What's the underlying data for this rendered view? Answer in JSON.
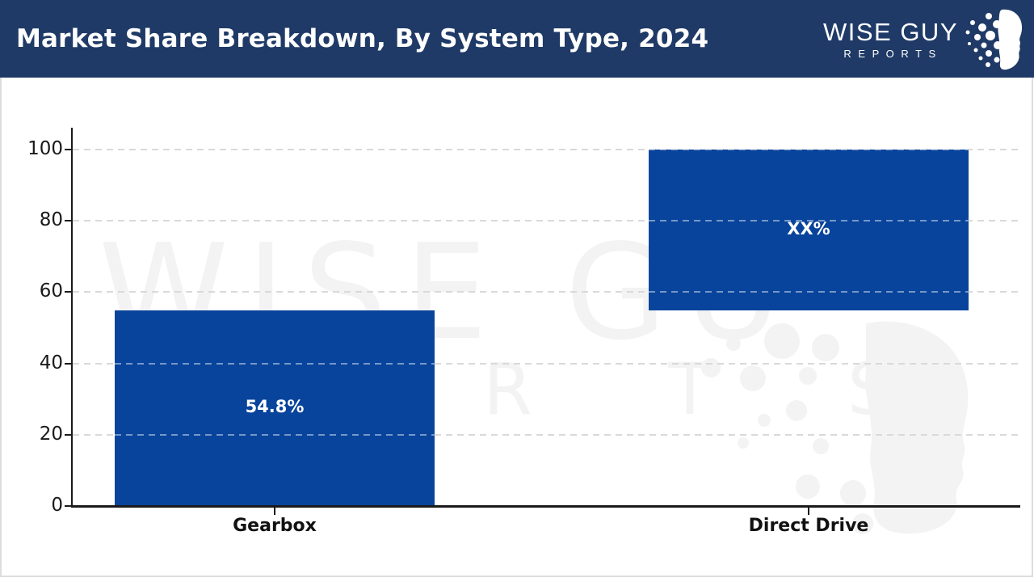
{
  "header": {
    "title": "Market Share Breakdown, By System Type, 2024"
  },
  "logo": {
    "line1": "WISE GUY",
    "line2": "R E P O R T S"
  },
  "watermark": {
    "line1": "WISE GU",
    "line2": "R T S"
  },
  "chart_data": {
    "type": "bar",
    "title": "Market Share Breakdown, By System Type, 2024",
    "categories": [
      "Gearbox",
      "Direct Drive"
    ],
    "bars": [
      {
        "category": "Gearbox",
        "start": 0,
        "end": 54.8,
        "label": "54.8%"
      },
      {
        "category": "Direct Drive",
        "start": 54.8,
        "end": 100,
        "label": "XX%"
      }
    ],
    "values": [
      54.8,
      45.2
    ],
    "yticks": [
      0,
      20,
      40,
      60,
      80,
      100
    ],
    "ylim": [
      0,
      100
    ],
    "grid": "horizontal-dashed",
    "legend": "none",
    "bar_color": "#08449C",
    "bar_label_color": "#ffffff"
  },
  "colors": {
    "header_bg": "#1F3A66",
    "bar": "#08449C",
    "gridline": "#D9D9D9",
    "axis": "#1a1a1a",
    "watermark": "#F3F3F3",
    "frame_border": "#DDDDDD"
  }
}
